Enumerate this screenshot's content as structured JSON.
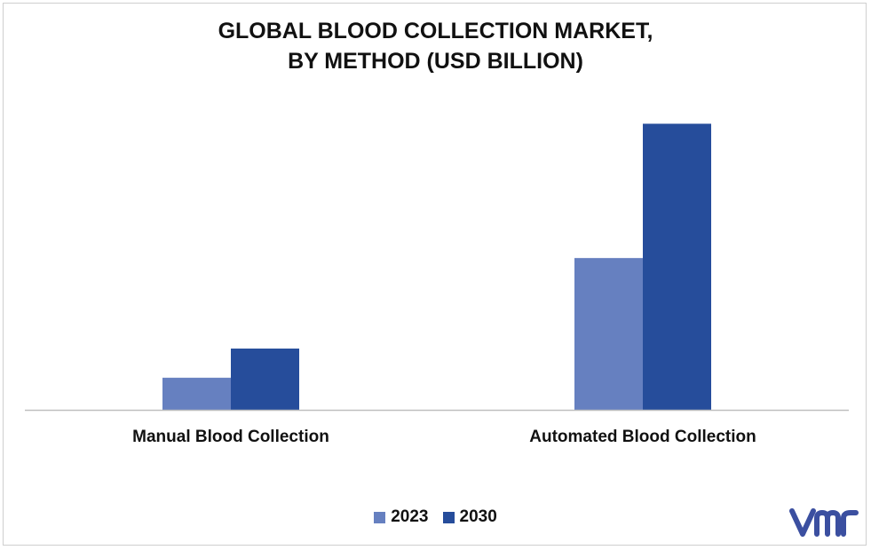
{
  "chart_data": {
    "type": "bar",
    "title": [
      "GLOBAL BLOOD COLLECTION MARKET,",
      "BY METHOD (USD BILLION)"
    ],
    "categories": [
      "Manual Blood Collection",
      "Automated Blood Collection"
    ],
    "series": [
      {
        "name": "2023",
        "color": "#6680c0",
        "values": [
          1.1,
          5.2
        ]
      },
      {
        "name": "2030",
        "color": "#264d9b",
        "values": [
          2.1,
          9.8
        ]
      }
    ],
    "ylim": [
      0,
      11
    ],
    "grid": false,
    "legend_position": "bottom-center",
    "data_labels": false
  },
  "branding": {
    "logo_icon": "vmr-logo-icon",
    "logo_color": "#3b4fa0"
  }
}
